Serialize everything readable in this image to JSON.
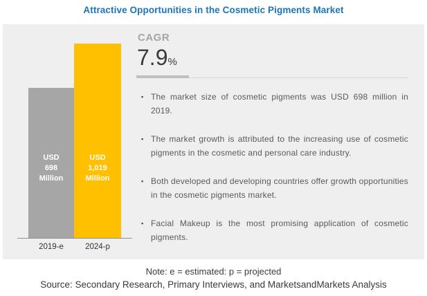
{
  "title": "Attractive Opportunities in the Cosmetic Pigments Market",
  "chart_data": {
    "type": "bar",
    "categories": [
      "2019-e",
      "2024-p"
    ],
    "values": [
      698,
      1019
    ],
    "unit": "USD Million",
    "value_labels": [
      [
        "USD",
        "698",
        "Million"
      ],
      [
        "USD",
        "1,019",
        "Million"
      ]
    ],
    "bar_colors": [
      "#a6a6a6",
      "#ffc000"
    ],
    "cagr_label": "CAGR",
    "cagr_value": "7.9",
    "cagr_unit": "%",
    "ylim": [
      0,
      1100
    ],
    "grid": false,
    "legend": false
  },
  "insights": [
    "The market size of cosmetic pigments was USD 698 million in 2019.",
    "The market growth is attributed to the increasing use of cosmetic pigments in the cosmetic and personal care industry.",
    "Both developed and developing countries offer growth opportunities in the cosmetic pigments market.",
    "Facial Makeup is the most promising application of cosmetic pigments."
  ],
  "footer": {
    "note": "Note: e = estimated: p = projected",
    "source": "Source: Secondary Research, Primary Interviews, and MarketsandMarkets Analysis"
  },
  "ui": {
    "bullet_marker": "▪"
  },
  "colors": {
    "title_blue": "#1b75bb",
    "panel_bg": "#efefef",
    "bar_2019": "#a6a6a6",
    "bar_2024": "#ffc000",
    "cagr_gray": "#a6a6a6",
    "text_dark": "#3a3a3a",
    "bullet_text": "#595959"
  }
}
